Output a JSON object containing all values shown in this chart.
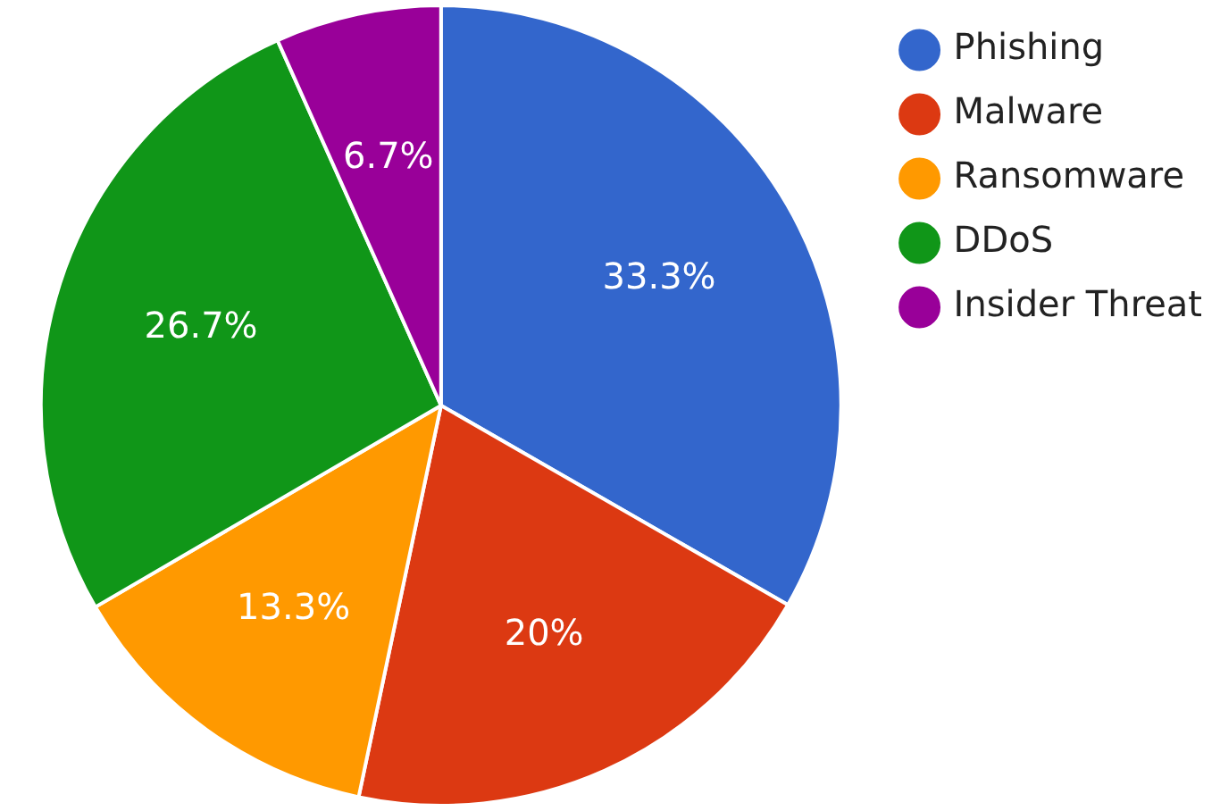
{
  "chart_data": {
    "type": "pie",
    "categories": [
      "Phishing",
      "Malware",
      "Ransomware",
      "DDoS",
      "Insider Threat"
    ],
    "values": [
      33.3,
      20,
      13.3,
      26.7,
      6.7
    ],
    "colors": [
      "#3366cc",
      "#dc3912",
      "#ff9900",
      "#109618",
      "#990099"
    ],
    "value_labels": [
      "33.3%",
      "20%",
      "13.3%",
      "26.7%",
      "6.7%"
    ],
    "legend": "top right"
  }
}
